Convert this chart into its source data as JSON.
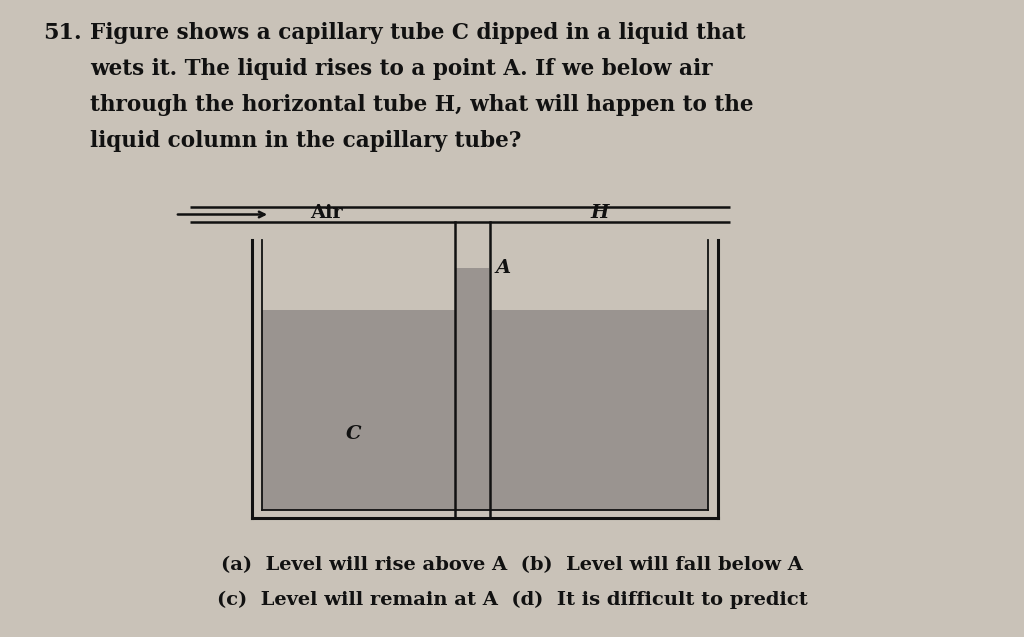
{
  "background_color": "#c9c2b8",
  "question_number": "51.",
  "question_text_lines": [
    "Figure shows a capillary tube C dipped in a liquid that",
    "wets it. The liquid rises to a point A. If we below air",
    "through the horizontal tube H, what will happen to the",
    "liquid column in the capillary tube?"
  ],
  "options_line1": "(a)  Level will rise above A  (b)  Level will fall below A",
  "options_line2": "(c)  Level will remain at A  (d)  It is difficult to predict",
  "liquid_color": "#9a9490",
  "beaker_wall_color": "#111111",
  "text_color": "#111111",
  "title_fontsize": 16,
  "body_fontsize": 15.5,
  "label_fontsize": 14,
  "option_fontsize": 14,
  "note_italic": [
    "C",
    "A",
    "H",
    "A",
    "A",
    "H",
    "A",
    "A"
  ]
}
